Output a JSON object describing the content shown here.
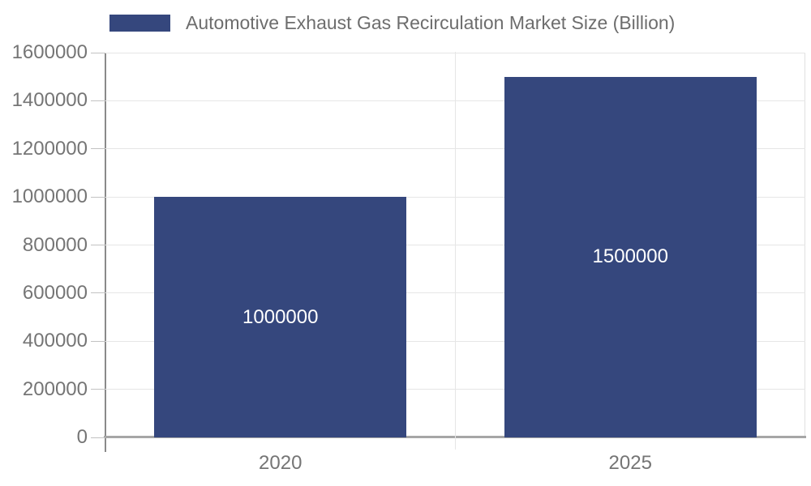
{
  "legend": {
    "label": "Automotive Exhaust Gas Recirculation Market Size (Billion)"
  },
  "colors": {
    "bar": "#35477D",
    "bar_label": "#FFFFFF",
    "title_text": "#6D6D6D",
    "tick_text": "#757575",
    "grid": "#E6E6E6",
    "tick_mark": "#C2C2C2",
    "y_axis": "#8A8A8A",
    "x_axis": "#A6A6A6",
    "plot_border": "#E0E0E0"
  },
  "chart_data": {
    "type": "bar",
    "title": "Automotive Exhaust Gas Recirculation Market Size (Billion)",
    "categories": [
      "2020",
      "2025"
    ],
    "values": [
      1000000,
      1500000
    ],
    "bar_value_labels": [
      "1000000",
      "1500000"
    ],
    "xlabel": "",
    "ylabel": "",
    "ylim": [
      0,
      1600000
    ],
    "yticks": [
      0,
      200000,
      400000,
      600000,
      800000,
      1000000,
      1200000,
      1400000,
      1600000
    ],
    "ytick_labels": [
      "0",
      "200000",
      "400000",
      "600000",
      "800000",
      "1000000",
      "1200000",
      "1400000",
      "1600000"
    ],
    "grid": true,
    "legend_position": "top-left",
    "legend_entries": [
      "Automotive Exhaust Gas Recirculation Market Size (Billion)"
    ],
    "bar_width_fraction": 0.72
  }
}
